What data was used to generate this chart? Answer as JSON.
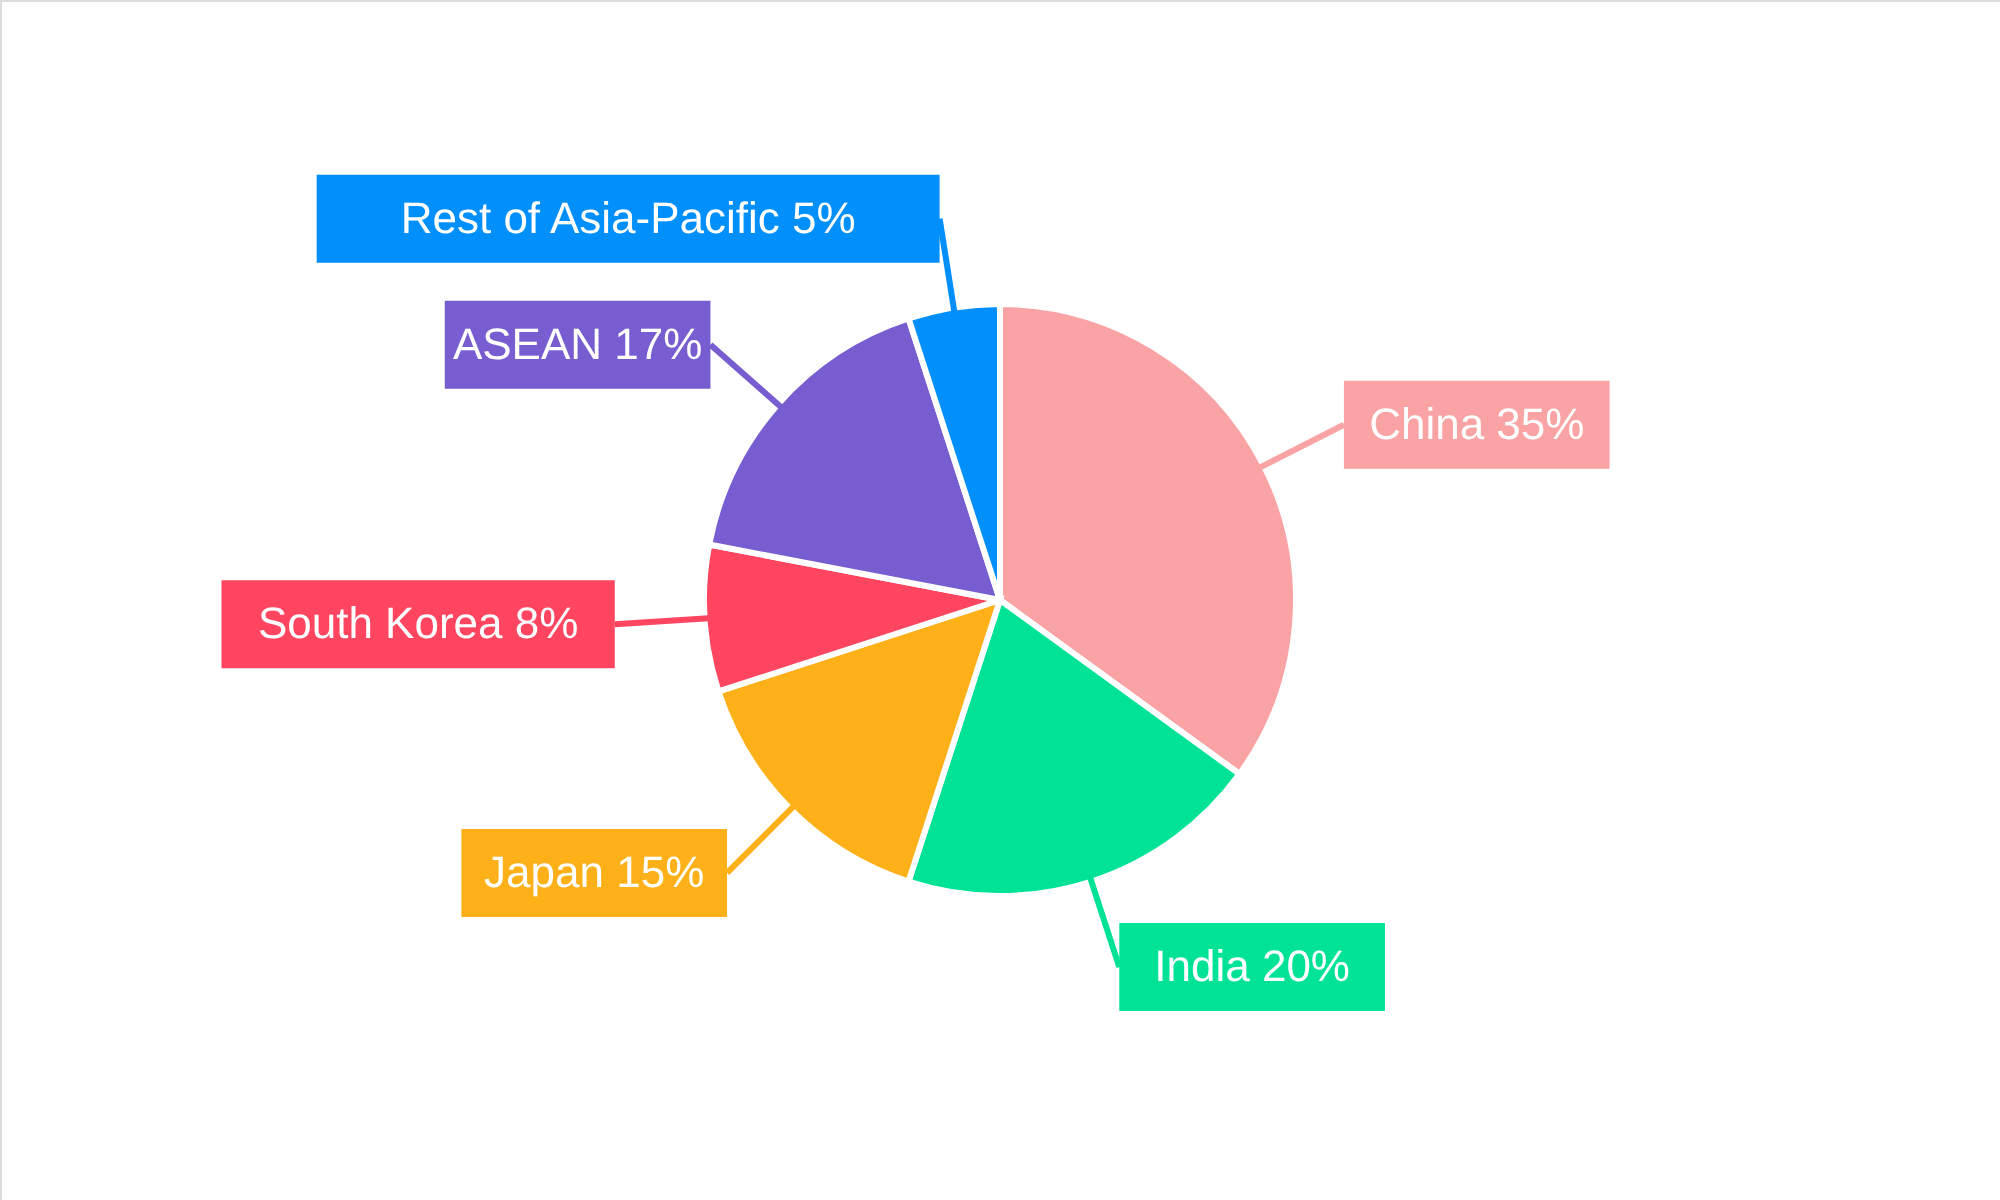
{
  "chart_data": {
    "type": "pie",
    "categories": [
      "China",
      "India",
      "Japan",
      "South Korea",
      "ASEAN",
      "Rest of Asia-Pacific"
    ],
    "values": [
      35,
      20,
      15,
      8,
      17,
      5
    ],
    "colors": [
      "#f9a3a4",
      "#00e396",
      "#feb019",
      "#ff4560",
      "#775dd0",
      "#008ffb"
    ],
    "value_labels": [
      "35%",
      "20%",
      "15%",
      "8%",
      "17%",
      "5%"
    ]
  }
}
